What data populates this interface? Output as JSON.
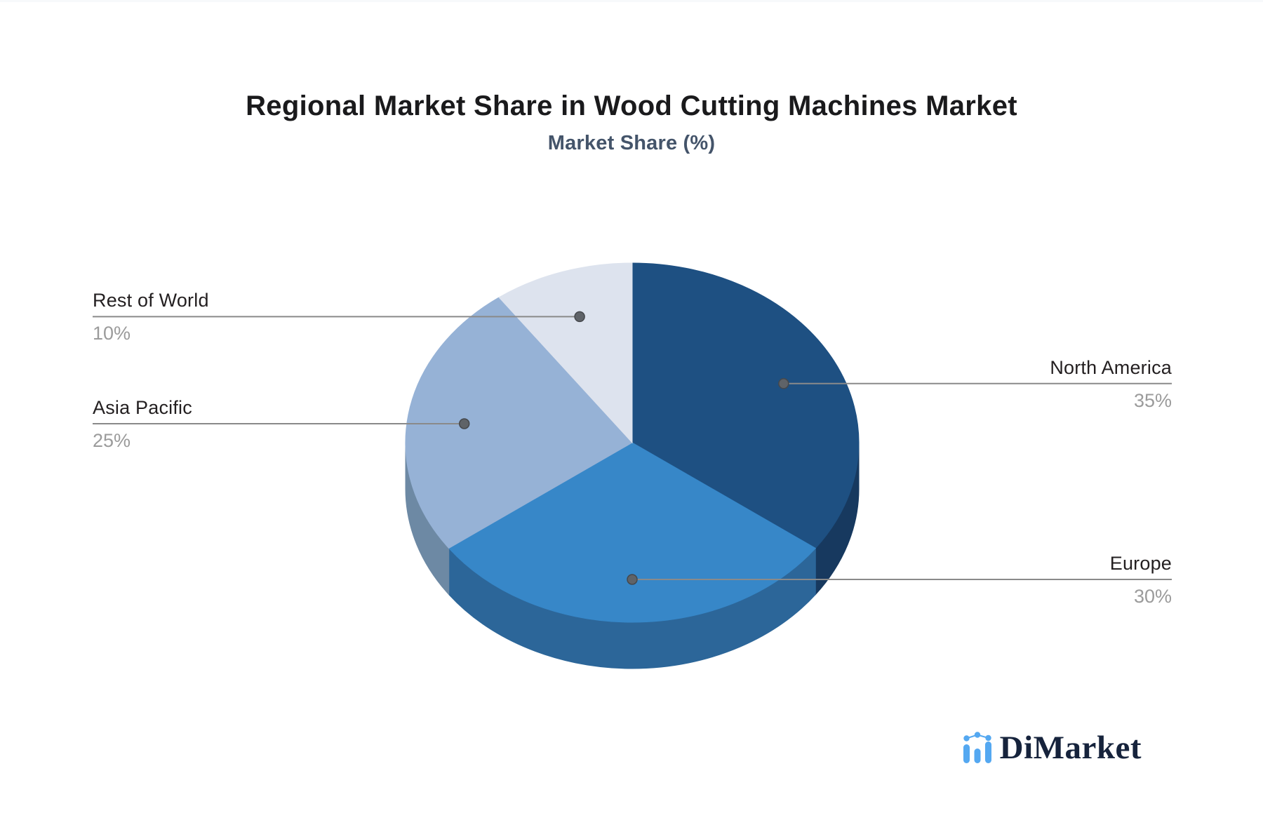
{
  "chart_data": {
    "type": "pie",
    "title": "Regional Market Share in Wood Cutting Machines Market",
    "subtitle": "Market Share (%)",
    "unit": "%",
    "effect": "3d",
    "start_angle": "top",
    "direction": "clockwise",
    "legend_position": "callouts",
    "series": [
      {
        "label": "North America",
        "value": 35,
        "display_value": "35%",
        "color": "#1e5082",
        "side_color": "#17395f",
        "label_side": "right"
      },
      {
        "label": "Europe",
        "value": 30,
        "display_value": "30%",
        "color": "#3787c8",
        "side_color": "#2c6699",
        "label_side": "right"
      },
      {
        "label": "Asia Pacific",
        "value": 25,
        "display_value": "25%",
        "color": "#96b2d6",
        "side_color": "#6d89a4",
        "label_side": "left"
      },
      {
        "label": "Rest of World",
        "value": 10,
        "display_value": "10%",
        "color": "#dde3ee",
        "label_side": "left"
      }
    ],
    "callout_text_color": "#231f20",
    "callout_value_color": "#9b9b9b",
    "leader_line_color": "#8a8a8a",
    "anchor_dot_color": "#5f6368"
  },
  "branding": {
    "logo_text": "DiMarket",
    "logo_icon": "bar-line-chart-icon",
    "logo_text_color": "#16233c",
    "logo_icon_color": "#54a8f1"
  }
}
